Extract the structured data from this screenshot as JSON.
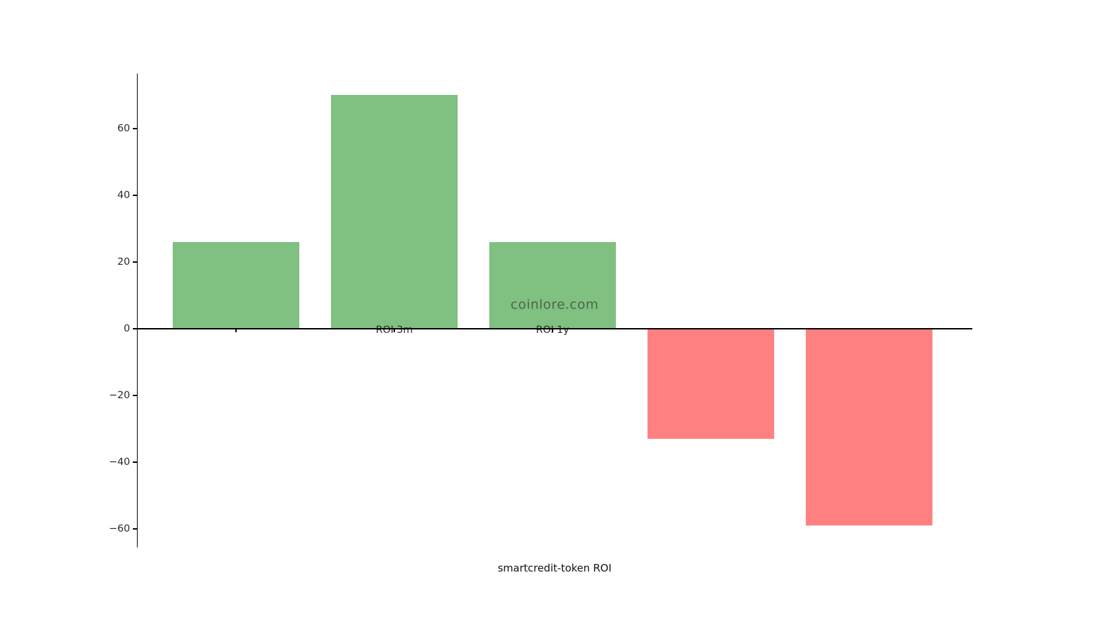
{
  "page": {
    "background": "#ffffff",
    "watermark": "coinlore.com",
    "footer_label": "smartcredit-token ROI"
  },
  "chart_data": {
    "type": "bar",
    "title": "smartcredit-token ROI",
    "categories": [
      "",
      "ROI 3m",
      "ROI 1y",
      "",
      ""
    ],
    "values": [
      26,
      70,
      26,
      -33,
      -59
    ],
    "bar_colors": [
      "#80c080",
      "#80c080",
      "#80c080",
      "#ff8080",
      "#ff8080"
    ],
    "positive_color": "#80c080",
    "negative_color": "#ff8080",
    "y_ticks": [
      60,
      40,
      20,
      0,
      -20,
      -40,
      -60
    ],
    "y_tick_labels": [
      "60",
      "40",
      "20",
      "0",
      "−20",
      "−40",
      "−60"
    ],
    "x_tick_label_count": 3,
    "ylim": [
      -65.5,
      76.5
    ],
    "xlabel": "",
    "ylabel": "",
    "grid": false,
    "legend": false,
    "axis_color": "#000000",
    "background": "#ffffff",
    "watermark": "coinlore.com"
  }
}
